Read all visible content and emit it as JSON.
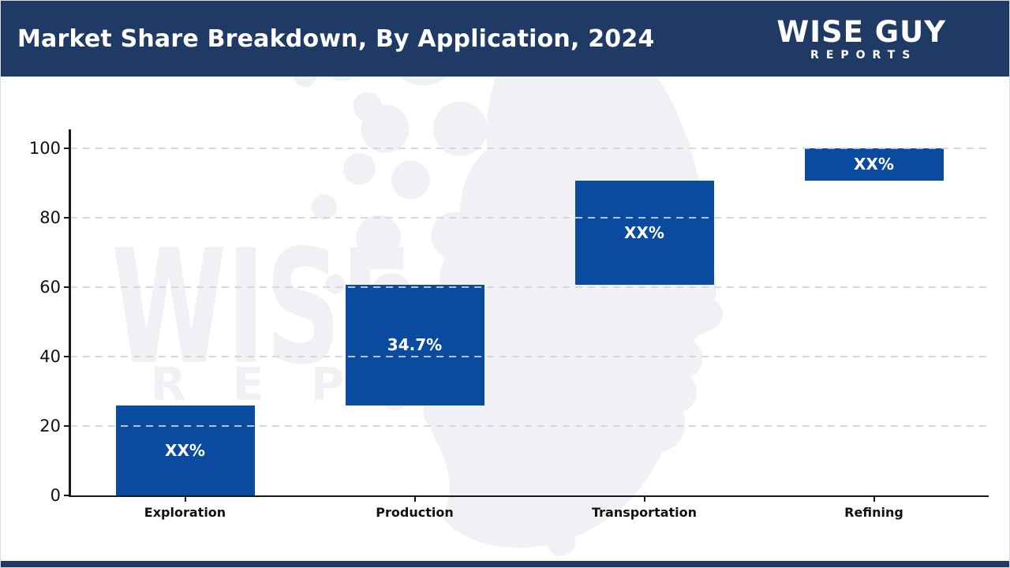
{
  "header": {
    "title": "Market Share Breakdown, By Application, 2024",
    "bg_color": "#203a66",
    "text_color": "#ffffff"
  },
  "logo": {
    "line1": "WISE GUY",
    "line2": "REPORTS"
  },
  "watermark": {
    "line1": "WISE GUY",
    "line2": "REPORTS",
    "color": "#f0f1f4"
  },
  "chart_data": {
    "type": "bar",
    "variant": "stacked-waterfall",
    "title": "Market Share Breakdown, By Application, 2024",
    "categories": [
      "Exploration",
      "Production",
      "Transportation",
      "Refining"
    ],
    "segments": [
      {
        "category": "Exploration",
        "from": 0,
        "to": 26,
        "label": "XX%"
      },
      {
        "category": "Production",
        "from": 26,
        "to": 60.7,
        "label": "34.7%"
      },
      {
        "category": "Transportation",
        "from": 60.7,
        "to": 90.7,
        "label": "XX%"
      },
      {
        "category": "Refining",
        "from": 90.7,
        "to": 100,
        "label": "XX%"
      }
    ],
    "values_pct": [
      26,
      34.7,
      30,
      9.3
    ],
    "xlabel": "",
    "ylabel": "",
    "yticks": [
      0,
      20,
      40,
      60,
      80,
      100
    ],
    "ylim": [
      0,
      105
    ],
    "grid": true,
    "legend": false,
    "bar_color": "#0a4a9f",
    "bar_label_color": "#ffffff",
    "gridline_color": "#d4d4d4",
    "axis_color": "#1a1a1a",
    "tick_label_color": "#111111"
  }
}
